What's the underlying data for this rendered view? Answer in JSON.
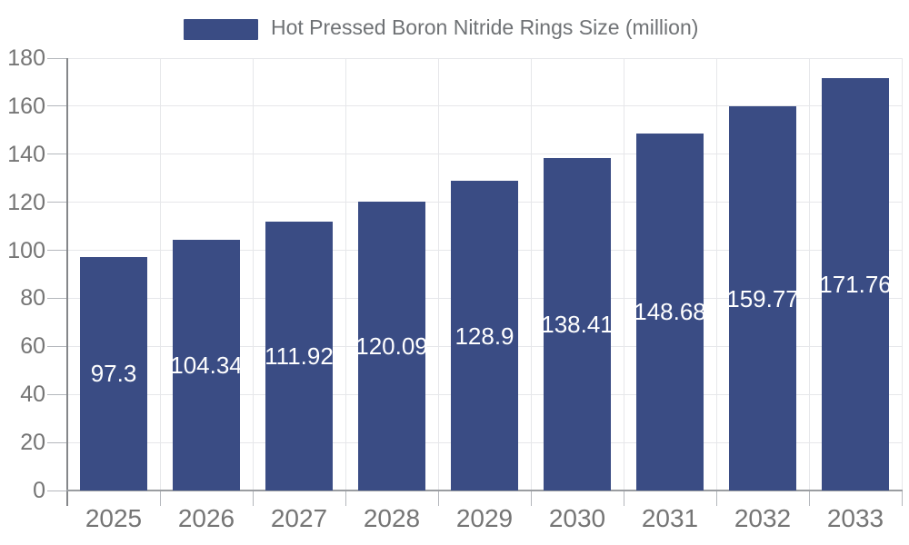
{
  "legend": {
    "label": "Hot Pressed Boron Nitride Rings Size (million)"
  },
  "chart_data": {
    "type": "bar",
    "title": "",
    "xlabel": "",
    "ylabel": "",
    "categories": [
      "2025",
      "2026",
      "2027",
      "2028",
      "2029",
      "2030",
      "2031",
      "2032",
      "2033"
    ],
    "values": [
      97.3,
      104.34,
      111.92,
      120.09,
      128.9,
      138.41,
      148.68,
      159.77,
      171.76
    ],
    "series_name": "Hot Pressed Boron Nitride Rings Size (million)",
    "value_labels_visible": true,
    "value_label_position": "inside-center",
    "ylim": [
      0,
      180
    ],
    "ytick_step": 20,
    "yticks": [
      0,
      20,
      40,
      60,
      80,
      100,
      120,
      140,
      160,
      180
    ],
    "grid": "horizontal-and-vertical",
    "legend_position": "top-center",
    "colors": {
      "bar": "#3a4c84",
      "value_label": "#ffffff",
      "axis_label": "#757575",
      "legend_text": "#6f7275",
      "gridline": "#e6e7ea",
      "background": "#ffffff"
    }
  }
}
